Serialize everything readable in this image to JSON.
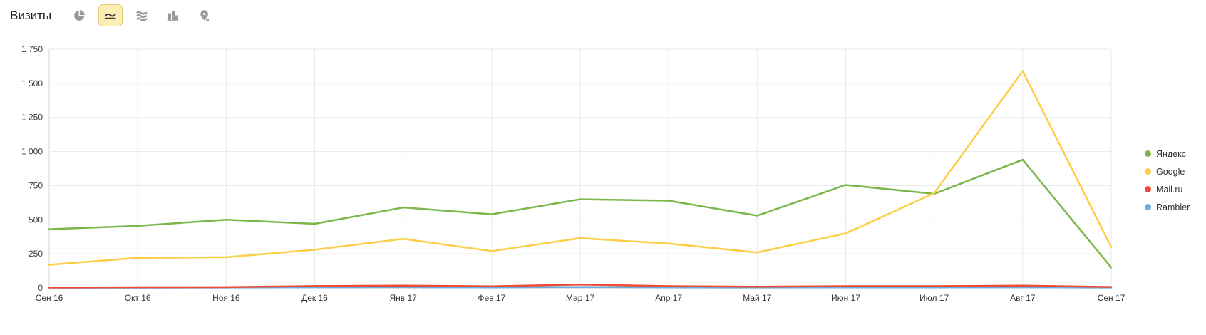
{
  "header": {
    "title": "Визиты",
    "tools": [
      {
        "id": "pie-chart",
        "selected": false
      },
      {
        "id": "line-chart",
        "selected": true
      },
      {
        "id": "area-chart",
        "selected": false
      },
      {
        "id": "column-chart",
        "selected": false
      },
      {
        "id": "map",
        "selected": false
      }
    ]
  },
  "chart_data": {
    "type": "line",
    "title": "Визиты",
    "categories": [
      "Сен 16",
      "Окт 16",
      "Ноя 16",
      "Дек 16",
      "Янв 17",
      "Фев 17",
      "Мар 17",
      "Апр 17",
      "Май 17",
      "Июн 17",
      "Июл 17",
      "Авг 17",
      "Сен 17"
    ],
    "series": [
      {
        "id": "yandex",
        "name": "Яндекс",
        "color": "#7ab648",
        "values": [
          430,
          455,
          500,
          470,
          590,
          540,
          650,
          640,
          530,
          755,
          690,
          940,
          150
        ]
      },
      {
        "id": "google",
        "name": "Google",
        "color": "#fbce45",
        "values": [
          170,
          220,
          225,
          280,
          360,
          270,
          365,
          325,
          260,
          400,
          695,
          1590,
          300
        ]
      },
      {
        "id": "mailru",
        "name": "Mail.ru",
        "color": "#ef4a36",
        "values": [
          3,
          5,
          6,
          14,
          17,
          12,
          25,
          13,
          9,
          13,
          13,
          17,
          7
        ]
      },
      {
        "id": "rambler",
        "name": "Rambler",
        "color": "#66ade0",
        "values": [
          2,
          2,
          3,
          5,
          6,
          4,
          7,
          4,
          3,
          4,
          4,
          5,
          3
        ]
      }
    ],
    "ylim": [
      0,
      1750
    ],
    "y_ticks": {
      "values": [
        0,
        250,
        500,
        750,
        1000,
        1250,
        1500,
        1750
      ],
      "labels": [
        "0",
        "250",
        "500",
        "750",
        "1 000",
        "1 250",
        "1 500",
        "1 750"
      ]
    },
    "xlabel": "",
    "ylabel": "",
    "grid": true,
    "legend_position": "right",
    "z_order": [
      "rambler",
      "mailru",
      "yandex",
      "google"
    ]
  },
  "colors": {
    "grid_line": "#e8e8e8",
    "axis_line": "#c6c6c6",
    "left_axis_line": "#d6d6d6",
    "selected_tool_bg": "#fbefb4",
    "selected_tool_border": "#e3cd7b",
    "tool_icon_gray": "#9a9a9a"
  }
}
